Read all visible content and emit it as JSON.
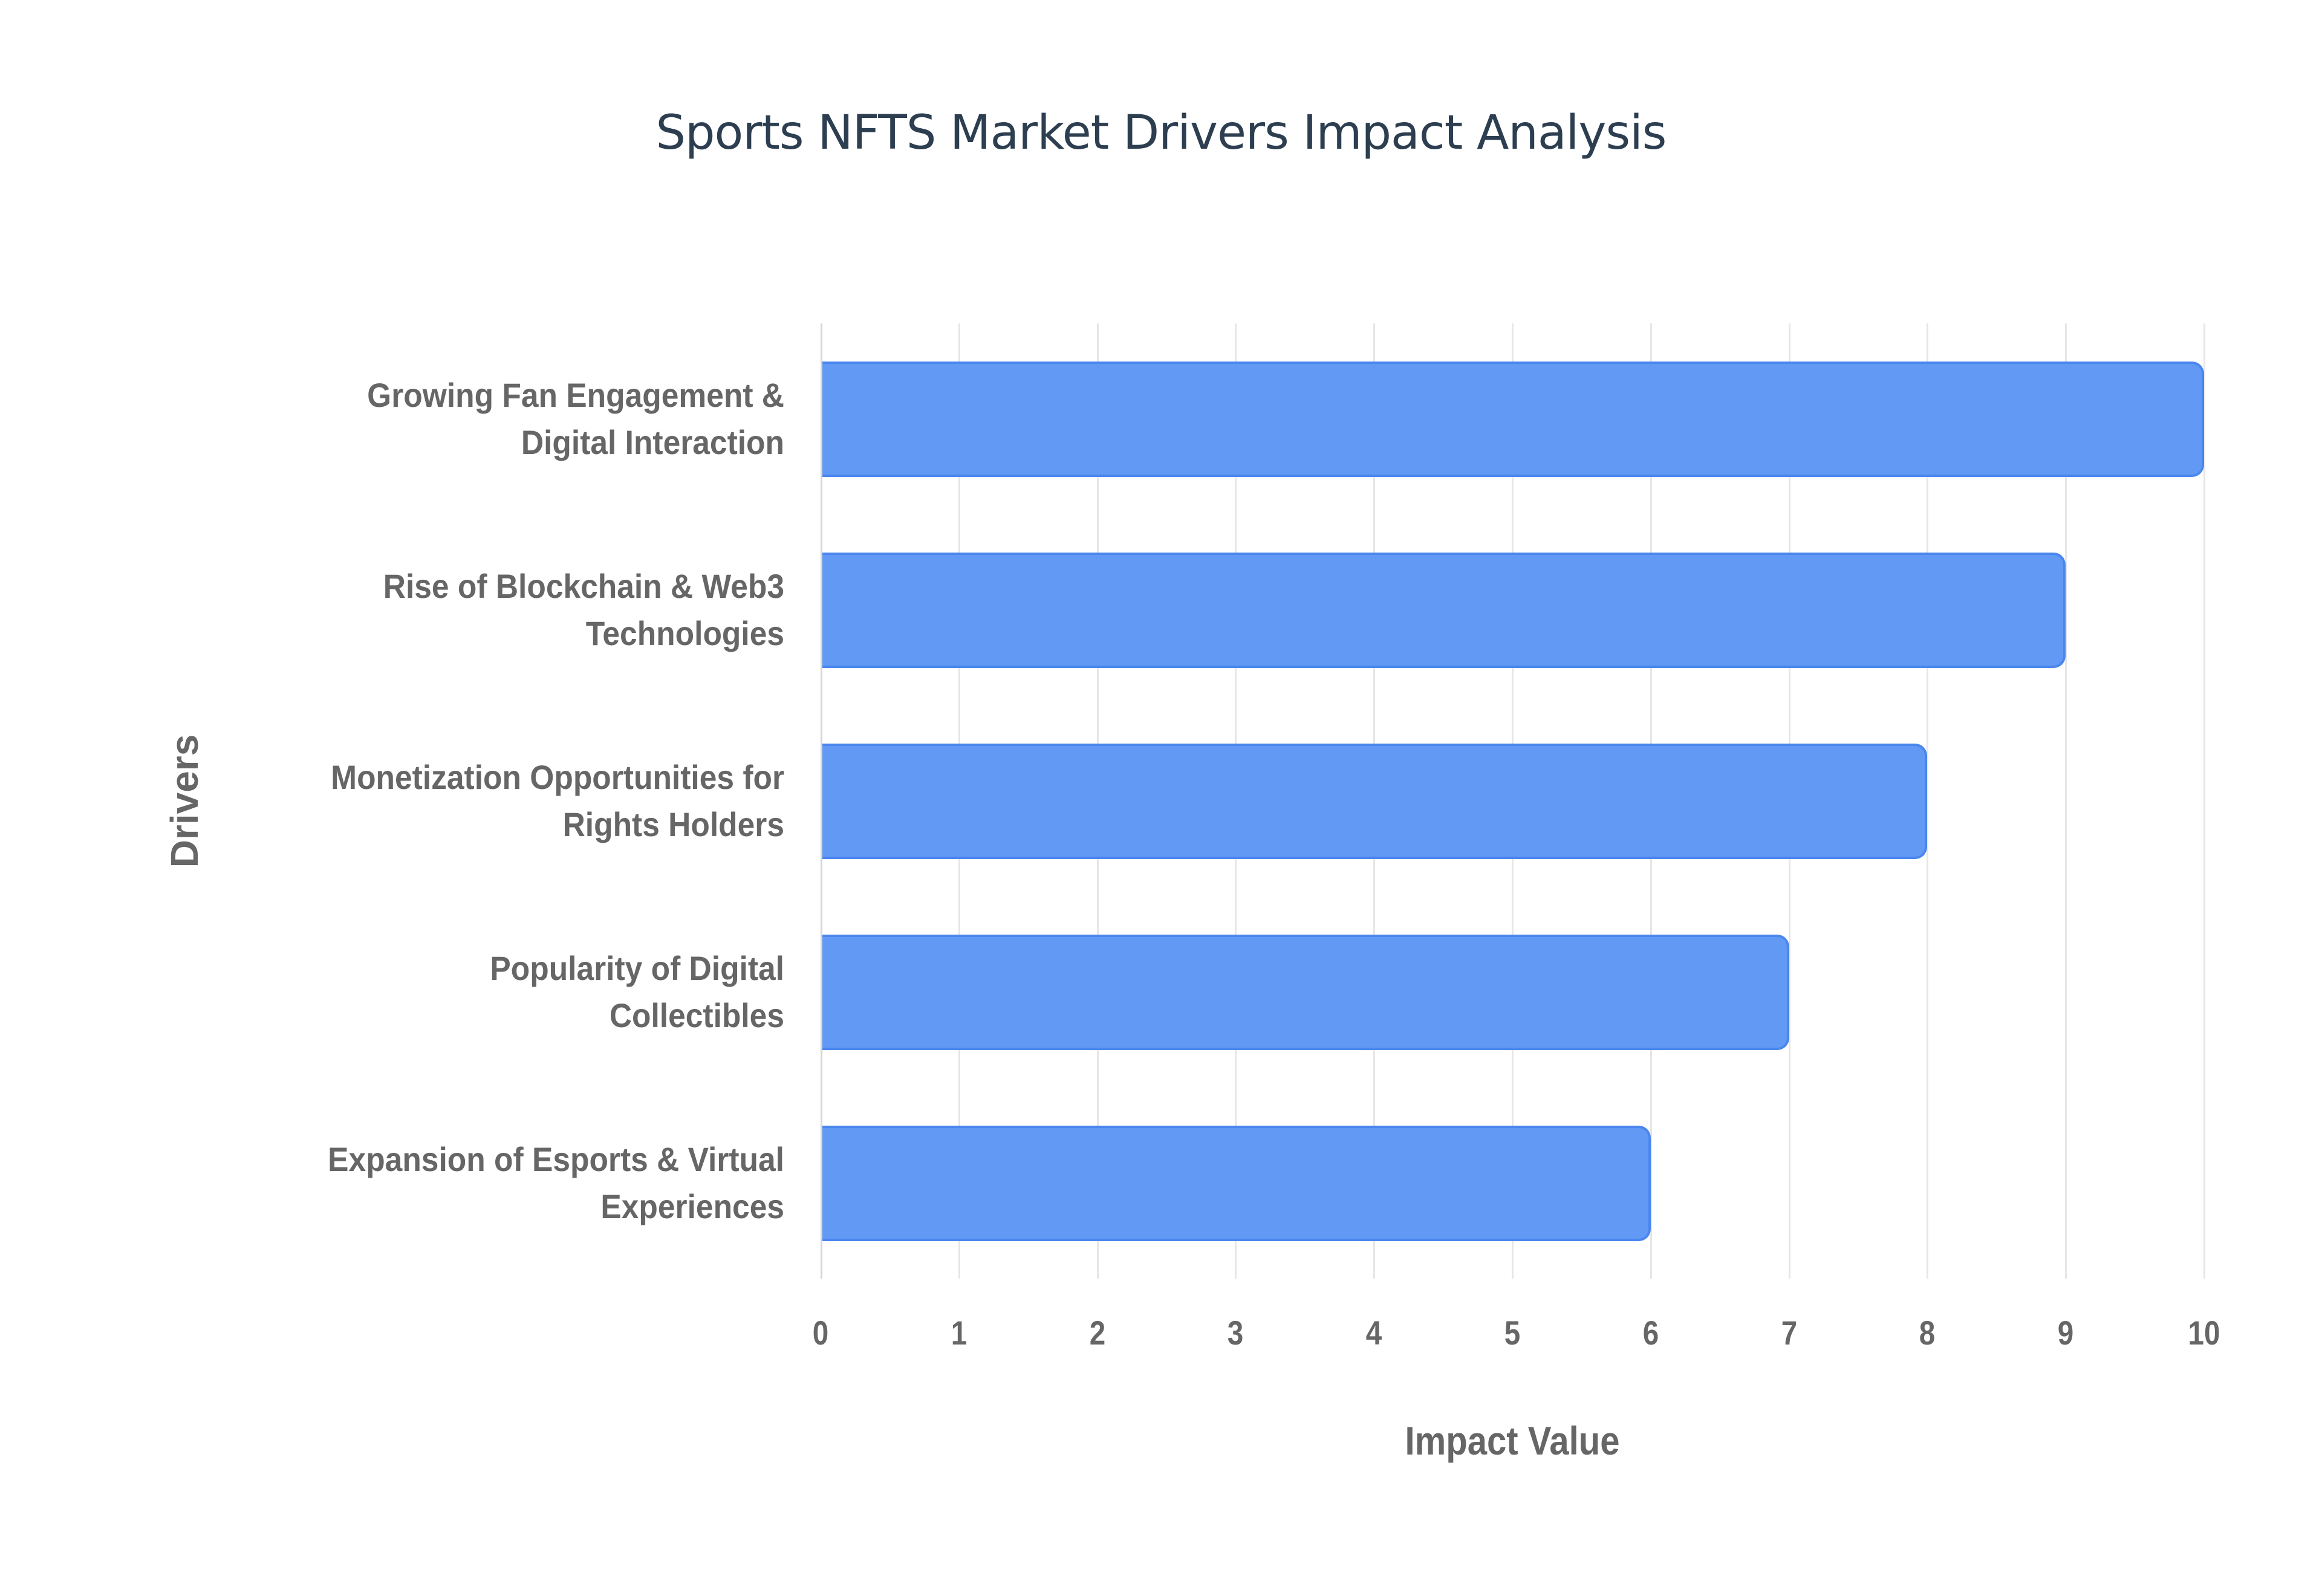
{
  "chart_data": {
    "type": "bar",
    "orientation": "horizontal",
    "title": "Sports NFTS Market Drivers Impact Analysis",
    "xlabel": "Impact Value",
    "ylabel": "Drivers",
    "categories": [
      "Growing Fan Engagement & Digital Interaction",
      "Rise of Blockchain & Web3 Technologies",
      "Monetization Opportunities for Rights Holders",
      "Popularity of Digital Collectibles",
      "Expansion of Esports & Virtual Experiences"
    ],
    "category_lines": [
      [
        "Growing Fan Engagement &",
        "Digital Interaction"
      ],
      [
        "Rise of Blockchain & Web3",
        "Technologies"
      ],
      [
        "Monetization Opportunities for",
        "Rights Holders"
      ],
      [
        "Popularity of Digital",
        "Collectibles"
      ],
      [
        "Expansion of Esports & Virtual",
        "Experiences"
      ]
    ],
    "values": [
      10,
      9,
      8,
      7,
      6
    ],
    "xlim": [
      0,
      10
    ],
    "xticks": [
      "0",
      "1",
      "2",
      "3",
      "4",
      "5",
      "6",
      "7",
      "8",
      "9",
      "10"
    ],
    "grid": true,
    "legend": false,
    "colors": {
      "bar_fill": "#6199f5",
      "bar_border": "#4a86ee",
      "title": "#2c3e50",
      "text": "#666666",
      "grid": "#e6e6e6"
    }
  }
}
